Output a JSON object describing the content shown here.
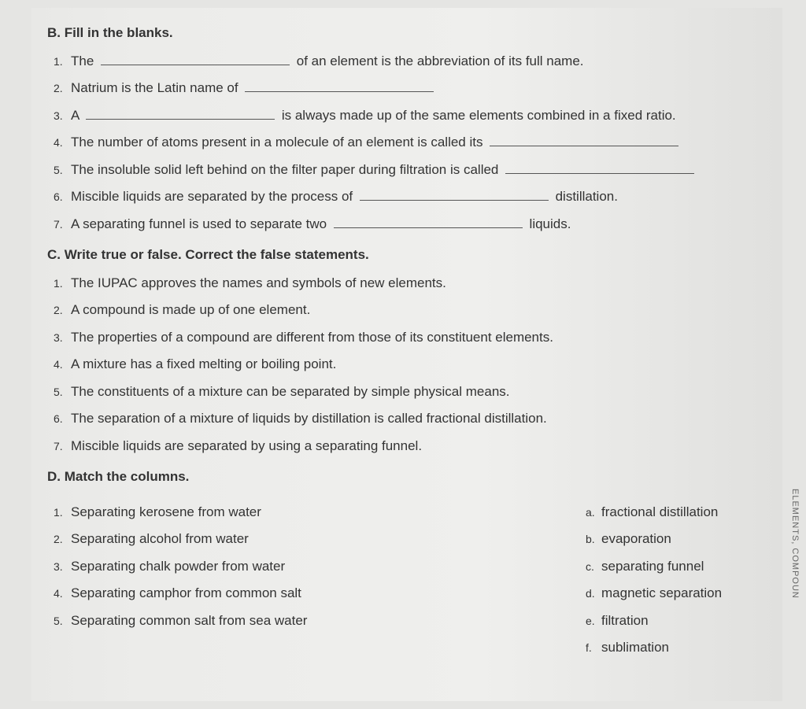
{
  "sectionB": {
    "header": "B. Fill in the blanks.",
    "items": [
      {
        "num": "1.",
        "pre": "The ",
        "post": " of an element is the abbreviation of its full name.",
        "blankClass": "blank-long"
      },
      {
        "num": "2.",
        "pre": "Natrium is the Latin name of ",
        "post": "",
        "blankClass": "blank-long"
      },
      {
        "num": "3.",
        "pre": "A ",
        "post": " is always made up of the same elements combined in a fixed ratio.",
        "blankClass": "blank-long"
      },
      {
        "num": "4.",
        "pre": "The number of atoms present in a molecule of an element is called its ",
        "post": "",
        "blankClass": "blank-long"
      },
      {
        "num": "5.",
        "pre": "The insoluble solid left behind on the filter paper during filtration is called ",
        "post": "",
        "blankClass": "blank-long"
      },
      {
        "num": "6.",
        "pre": "Miscible liquids are separated by the process of ",
        "post": " distillation.",
        "blankClass": "blank-long"
      },
      {
        "num": "7.",
        "pre": "A separating funnel is used to separate two ",
        "post": " liquids.",
        "blankClass": "blank-long"
      }
    ]
  },
  "sectionC": {
    "header": "C. Write true or false. Correct the false statements.",
    "items": [
      {
        "num": "1.",
        "text": "The IUPAC approves the names and symbols of new elements."
      },
      {
        "num": "2.",
        "text": "A compound is made up of one element."
      },
      {
        "num": "3.",
        "text": "The properties of a compound are different from those of its constituent elements."
      },
      {
        "num": "4.",
        "text": "A mixture has a fixed melting or boiling point."
      },
      {
        "num": "5.",
        "text": "The constituents of a mixture can be separated by simple physical means."
      },
      {
        "num": "6.",
        "text": "The separation of a mixture of liquids by distillation is called fractional distillation."
      },
      {
        "num": "7.",
        "text": "Miscible liquids are separated by using a separating funnel."
      }
    ]
  },
  "sectionD": {
    "header": "D. Match the columns.",
    "left": [
      {
        "num": "1.",
        "text": "Separating kerosene from water"
      },
      {
        "num": "2.",
        "text": "Separating alcohol from water"
      },
      {
        "num": "3.",
        "text": "Separating chalk powder from water"
      },
      {
        "num": "4.",
        "text": "Separating camphor from common salt"
      },
      {
        "num": "5.",
        "text": "Separating common salt from sea water"
      }
    ],
    "right": [
      {
        "num": "a.",
        "text": "fractional distillation"
      },
      {
        "num": "b.",
        "text": "evaporation"
      },
      {
        "num": "c.",
        "text": "separating funnel"
      },
      {
        "num": "d.",
        "text": "magnetic separation"
      },
      {
        "num": "e.",
        "text": "filtration"
      },
      {
        "num": "f.",
        "text": "sublimation"
      }
    ]
  },
  "sideText": "ELEMENTS, COMPOUN"
}
